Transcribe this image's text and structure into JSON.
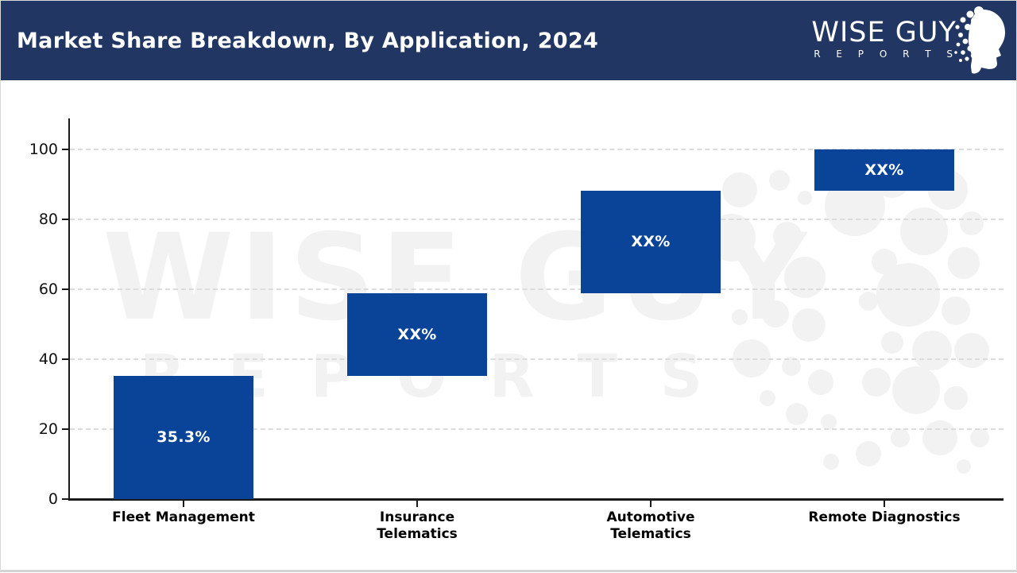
{
  "header": {
    "title": "Market Share Breakdown, By Application, 2024",
    "logo": {
      "wordmark": "WISE GUY",
      "subtext": "REPORTS",
      "subtext_spaced": "R E P O R T S"
    }
  },
  "watermark": {
    "wordmark": "WISE GUY",
    "subtext_spaced": "R E P O R T S"
  },
  "chart_data": {
    "type": "bar",
    "variant": "waterfall",
    "title": "Market Share Breakdown, By Application, 2024",
    "categories": [
      "Fleet Management",
      "Insurance Telematics",
      "Automotive Telematics",
      "Remote Diagnostics"
    ],
    "category_label_lines": [
      [
        "Fleet Management"
      ],
      [
        "Insurance",
        "Telematics"
      ],
      [
        "Automotive",
        "Telematics"
      ],
      [
        "Remote Diagnostics"
      ]
    ],
    "segments": [
      {
        "category": "Fleet Management",
        "start": 0,
        "end": 35.3,
        "value_label": "35.3%"
      },
      {
        "category": "Insurance Telematics",
        "start": 35.3,
        "end": 58.9,
        "value_label": "XX%"
      },
      {
        "category": "Automotive Telematics",
        "start": 58.9,
        "end": 88.2,
        "value_label": "XX%"
      },
      {
        "category": "Remote Diagnostics",
        "start": 88.2,
        "end": 100,
        "value_label": "XX%"
      }
    ],
    "xlabel": "",
    "ylabel": "",
    "ylim": [
      0,
      100
    ],
    "yticks": [
      0,
      20,
      40,
      60,
      80,
      100
    ],
    "grid": "horizontal dashed",
    "legend": "none",
    "bar_color": "#0a4499",
    "value_label_color": "#ffffff"
  },
  "colors": {
    "header_bg": "#213663",
    "bar": "#0a4499",
    "axis": "#1a1a1a",
    "grid": "#dcdcdc",
    "watermark": "#f2f2f2",
    "page_bg": "#ffffff"
  }
}
